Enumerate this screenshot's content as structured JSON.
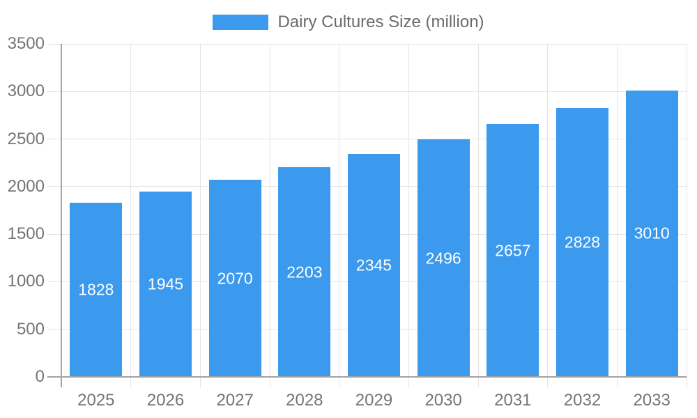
{
  "chart_data": {
    "type": "bar",
    "title": "",
    "series_name": "Dairy Cultures Size (million)",
    "categories": [
      "2025",
      "2026",
      "2027",
      "2028",
      "2029",
      "2030",
      "2031",
      "2032",
      "2033"
    ],
    "values": [
      1828,
      1945,
      2070,
      2203,
      2345,
      2496,
      2657,
      2828,
      3010
    ],
    "xlabel": "",
    "ylabel": "",
    "ylim": [
      0,
      3500
    ],
    "yticks": [
      0,
      500,
      1000,
      1500,
      2000,
      2500,
      3000,
      3500
    ],
    "grid": true,
    "legend_position": "top"
  },
  "legend": {
    "label": "Dairy Cultures Size (million)"
  },
  "colors": {
    "bar": "#3b99ee",
    "bar_value_text": "#ffffff",
    "grid_line": "#e4e4e4",
    "axis_line": "#a3a3a3",
    "tick_text": "#757575",
    "legend_text": "#6b6b6b",
    "background": "#ffffff"
  }
}
